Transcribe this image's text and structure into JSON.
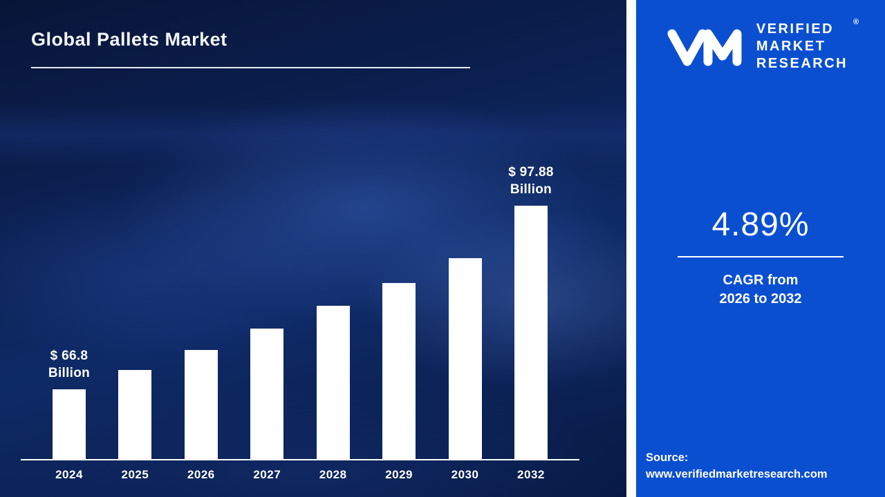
{
  "page": {
    "title": "Global Pallets Market"
  },
  "chart_data": {
    "type": "bar",
    "title": "Global Pallets Market",
    "unit": "USD Billion",
    "categories": [
      "2024",
      "2025",
      "2026",
      "2027",
      "2028",
      "2029",
      "2030",
      "2032"
    ],
    "values": [
      66.8,
      70.1,
      73.5,
      77.1,
      80.9,
      84.8,
      89.0,
      97.88
    ],
    "ylim": [
      55,
      100
    ],
    "grid": false,
    "legend": "none",
    "annotations": {
      "start": [
        "$ 66.8",
        "Billion"
      ],
      "end": [
        "$ 97.88",
        "Billion"
      ]
    }
  },
  "sidebar": {
    "logo": {
      "monogram": "vmr-monogram",
      "brand_lines": [
        "VERIFIED",
        "MARKET",
        "RESEARCH"
      ],
      "registered_mark": "®"
    },
    "cagr_value": "4.89%",
    "cagr_label_line1": "CAGR from",
    "cagr_label_line2": "2026 to 2032",
    "source_label": "Source:",
    "source_url": "www.verifiedmarketresearch.com"
  },
  "colors": {
    "main_bg": "#0a1c49",
    "sidebar_bg": "#0b4fd1",
    "bar_color": "#ffffff",
    "text_color": "#ffffff"
  }
}
